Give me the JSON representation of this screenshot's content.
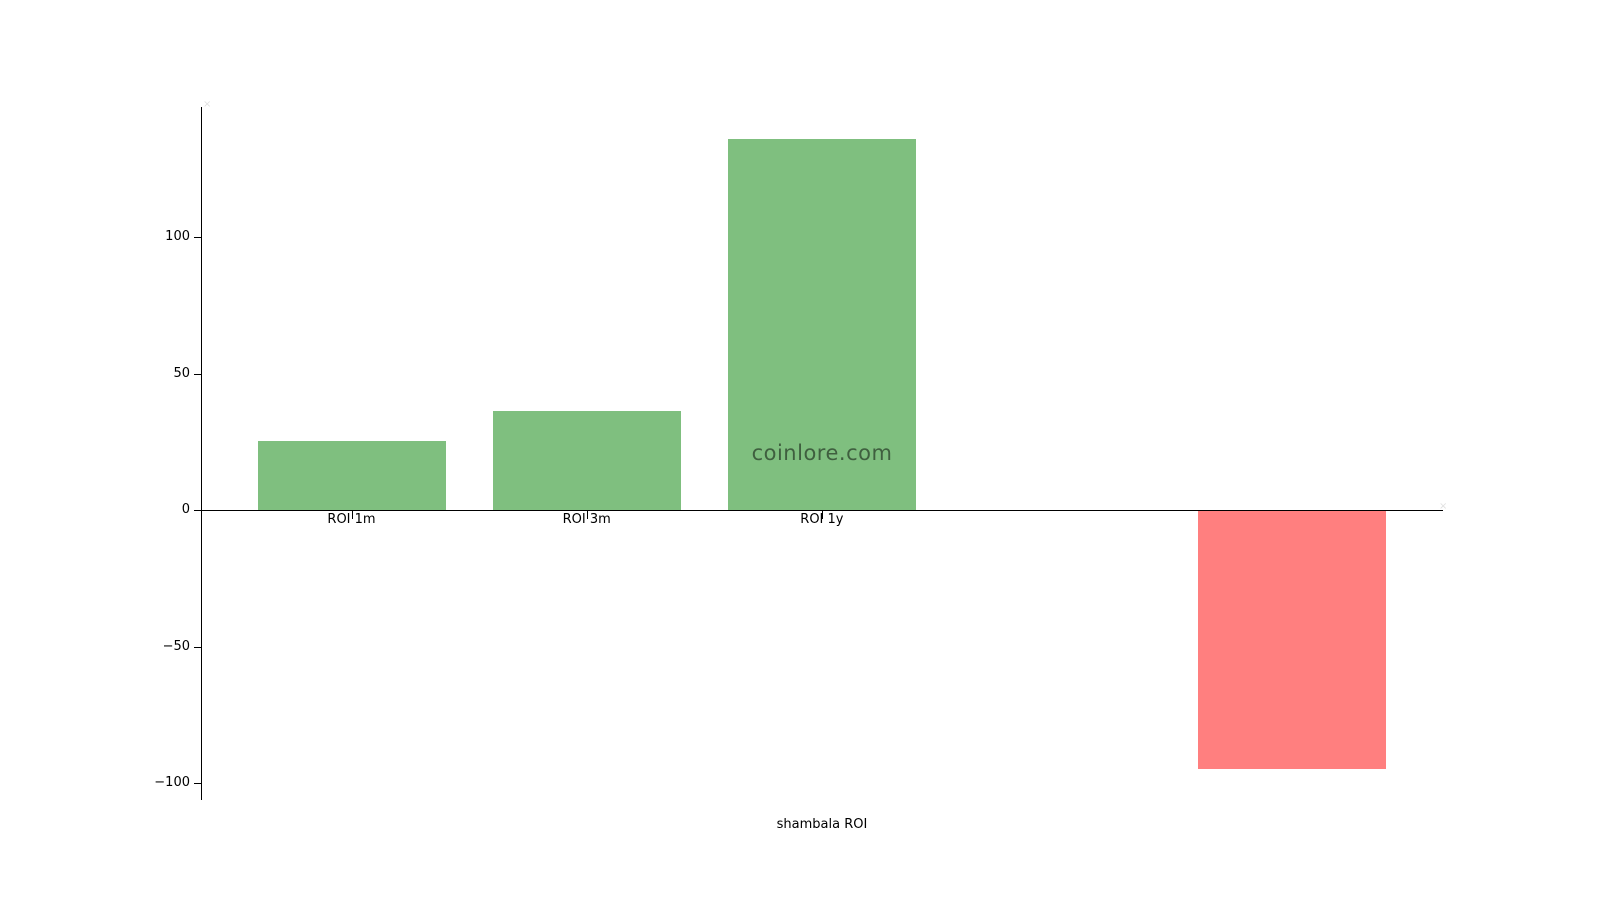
{
  "watermark": {
    "text": "coinlore.com",
    "color": "rgba(0,0,0,0.5)"
  },
  "chart_data": {
    "type": "bar",
    "title": "",
    "xlabel": "shambala ROI",
    "ylabel": "",
    "categories": [
      "ROI 1m",
      "ROI 3m",
      "ROI 1y",
      "",
      ""
    ],
    "values": [
      25.4,
      36.3,
      135.8,
      0,
      -95.0
    ],
    "bar_colors": [
      "#7fbf7f",
      "#7fbf7f",
      "#7fbf7f",
      "#7fbf7f",
      "#ff7f7f"
    ],
    "positive_color": "#7fbf7f",
    "negative_color": "#ff7f7f",
    "yticks": [
      100,
      50,
      0,
      -50,
      -100
    ],
    "ylim": [
      -106,
      148
    ],
    "xlim_slots": 5,
    "grid": false,
    "legend": null,
    "axis_color": "#000000"
  }
}
